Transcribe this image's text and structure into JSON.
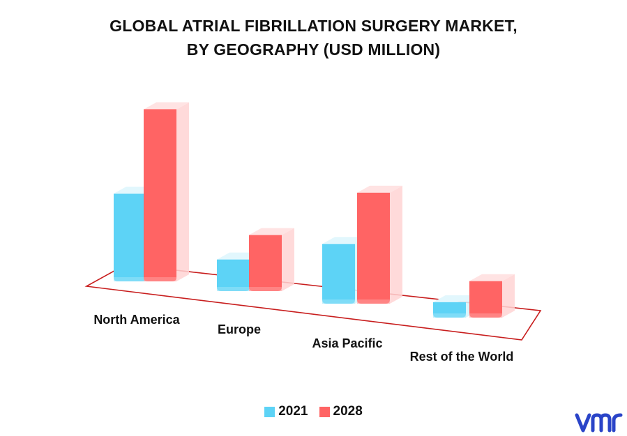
{
  "chart_data": {
    "type": "bar",
    "title": [
      "GLOBAL ATRIAL FIBRILLATION SURGERY MARKET,",
      "BY GEOGRAPHY (USD MILLION)"
    ],
    "categories": [
      "North America",
      "Europe",
      "Asia Pacific",
      "Rest of the World"
    ],
    "series": [
      {
        "name": "2021",
        "color": "#5dd3f6",
        "values": [
          125,
          45,
          85,
          22
        ]
      },
      {
        "name": "2028",
        "color": "#ff6464",
        "values": [
          245,
          80,
          158,
          52
        ]
      }
    ],
    "ylim": [
      0,
      260
    ],
    "grid": false,
    "legend_placement": "bottom-center",
    "style": "3d-perspective-columns"
  },
  "brand": {
    "logo_icon": "vmr-logo-icon",
    "logo_color": "#2a44c8"
  }
}
